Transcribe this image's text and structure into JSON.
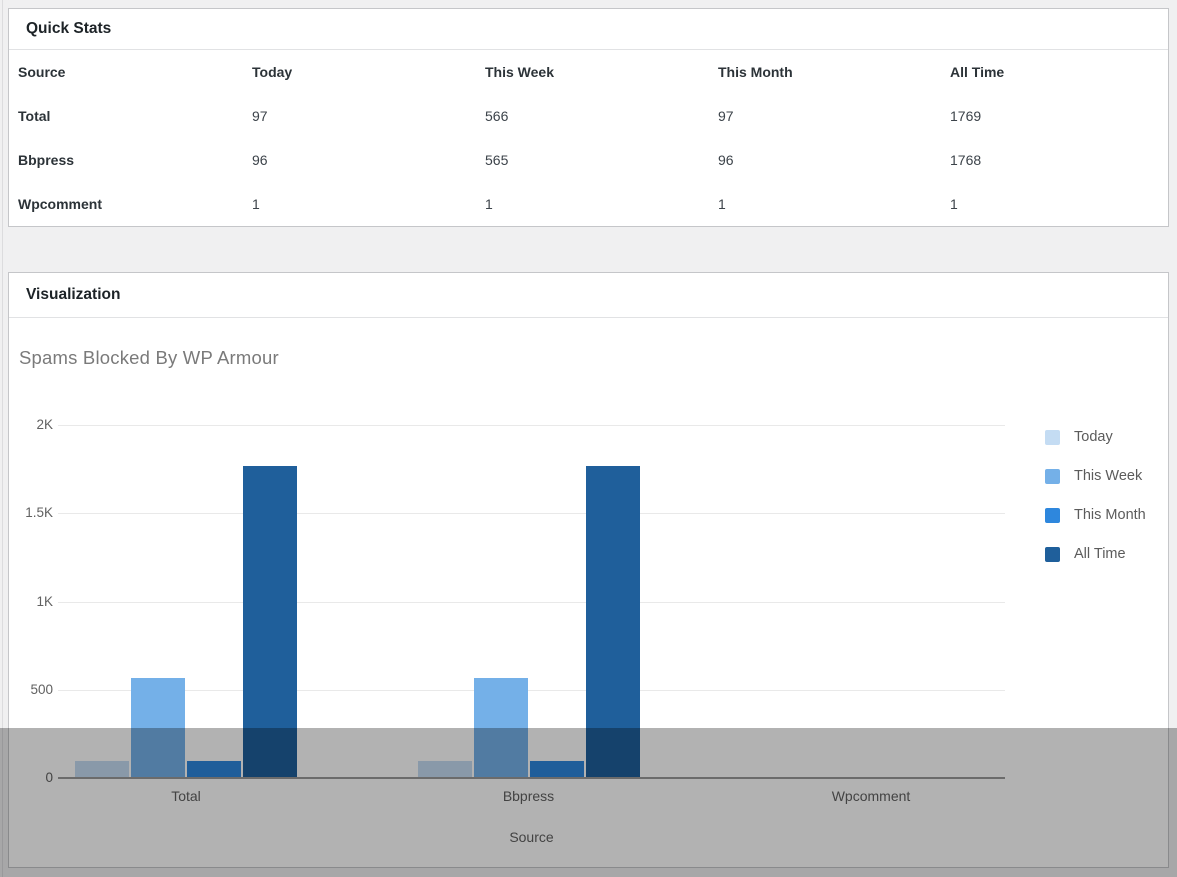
{
  "window": {
    "background": "#f0f0f1"
  },
  "quick_stats": {
    "title": "Quick Stats",
    "table": {
      "columns": [
        "Source",
        "Today",
        "This Week",
        "This Month",
        "All Time"
      ],
      "rows": [
        {
          "label": "Total",
          "values": [
            "97",
            "566",
            "97",
            "1769"
          ]
        },
        {
          "label": "Bbpress",
          "values": [
            "96",
            "565",
            "96",
            "1768"
          ]
        },
        {
          "label": "Wpcomment",
          "values": [
            "1",
            "1",
            "1",
            "1"
          ]
        }
      ]
    }
  },
  "visualization": {
    "title": "Visualization"
  },
  "chart_data": {
    "type": "bar",
    "title": "Spams Blocked By WP Armour",
    "categories": [
      "Total",
      "Bbpress",
      "Wpcomment"
    ],
    "series": [
      {
        "name": "Today",
        "color": "#c4dcf3",
        "values": [
          97,
          96,
          1
        ]
      },
      {
        "name": "This Week",
        "color": "#74b0e8",
        "values": [
          566,
          565,
          1
        ]
      },
      {
        "name": "This Month",
        "color": "#2e87dd",
        "values": [
          97,
          96,
          1
        ]
      },
      {
        "name": "All Time",
        "color": "#1f5f9b",
        "values": [
          1769,
          1768,
          1
        ]
      }
    ],
    "xlabel": "Source",
    "ylabel": "",
    "ylim": [
      0,
      2000
    ],
    "y_ticks": [
      {
        "value": 0,
        "label": "0"
      },
      {
        "value": 500,
        "label": "500"
      },
      {
        "value": 1000,
        "label": "1K"
      },
      {
        "value": 1500,
        "label": "1.5K"
      },
      {
        "value": 2000,
        "label": "2K"
      }
    ],
    "legend_position": "right",
    "grid": true
  }
}
